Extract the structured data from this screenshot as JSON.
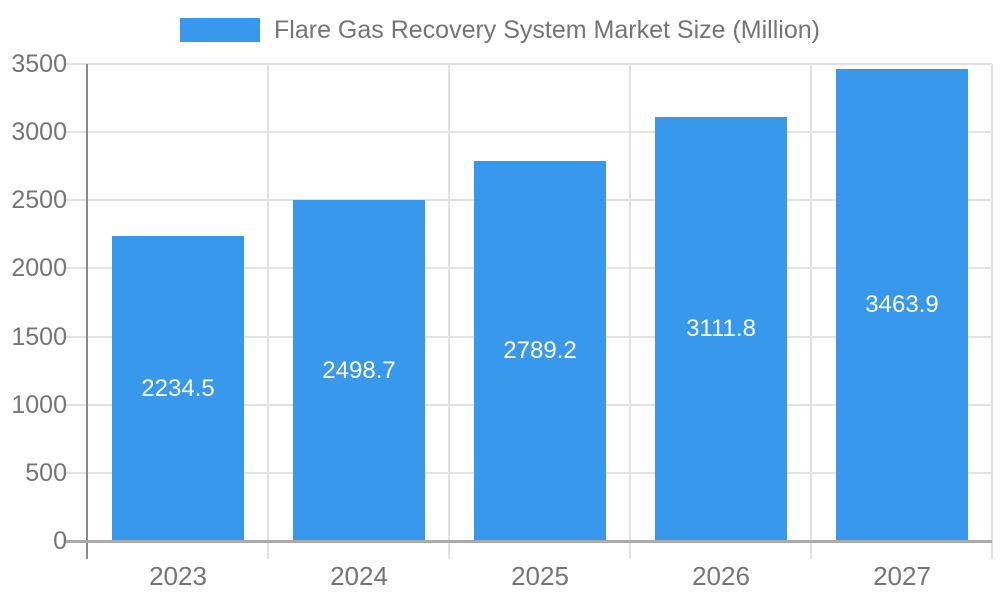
{
  "legend": {
    "label": "Flare Gas Recovery System Market Size (Million)"
  },
  "chart_data": {
    "type": "bar",
    "title": "Flare Gas Recovery System Market Size (Million)",
    "series": [
      {
        "name": "Flare Gas Recovery System Market Size (Million)",
        "values": [
          2234.5,
          2498.7,
          2789.2,
          3111.8,
          3463.9
        ]
      }
    ],
    "categories": [
      "2023",
      "2024",
      "2025",
      "2026",
      "2027"
    ],
    "value_labels": [
      "2234.5",
      "2498.7",
      "2789.2",
      "3111.8",
      "3463.9"
    ],
    "xlabel": "",
    "ylabel": "",
    "ylim": [
      0,
      3500
    ],
    "yticks": [
      0,
      500,
      1000,
      1500,
      2000,
      2500,
      3000,
      3500
    ],
    "grid": true,
    "legend_position": "top-center",
    "colors": {
      "bar": "#3898ec",
      "grid_line": "#e2e2e2",
      "y_axis_line": "#8a8a8a",
      "baseline": "#ababab",
      "tick_label": "#757575",
      "data_label": "#ffffff",
      "background": "#ffffff"
    }
  }
}
